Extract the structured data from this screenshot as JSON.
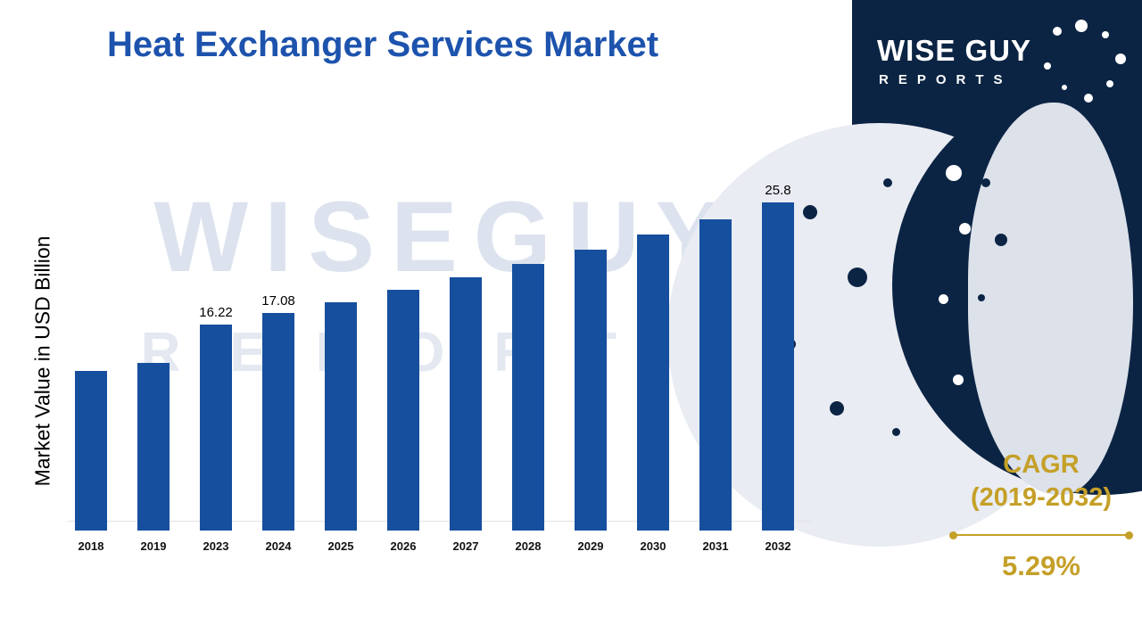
{
  "page": {
    "title": "Heat Exchanger Services Market"
  },
  "logo": {
    "line1": "WISE GUY",
    "line2": "REPORTS"
  },
  "watermark": {
    "line1": "WISEGUY",
    "line2": "REPORTS"
  },
  "cagr": {
    "label": "CAGR",
    "range": "(2019-2032)",
    "value": "5.29%"
  },
  "colors": {
    "bar": "#164f9e",
    "title": "#1d53ad",
    "navy": "#0b2444",
    "gold": "#c5a028",
    "watermark": "#dde3ee"
  },
  "chart_data": {
    "type": "bar",
    "title": "Heat Exchanger Services Market",
    "xlabel": "",
    "ylabel": "Market Value in USD Billion",
    "units": "USD Billion",
    "categories": [
      "2018",
      "2019",
      "2023",
      "2024",
      "2025",
      "2026",
      "2027",
      "2028",
      "2029",
      "2030",
      "2031",
      "2032"
    ],
    "values": [
      12.53,
      13.2,
      16.22,
      17.08,
      17.98,
      18.93,
      19.93,
      20.99,
      22.1,
      23.27,
      24.5,
      25.8
    ],
    "value_labels": [
      "",
      "",
      "16.22",
      "17.08",
      "",
      "",
      "",
      "",
      "",
      "",
      "",
      "25.8"
    ],
    "ylim": [
      0,
      27
    ],
    "grid": false,
    "legend": false,
    "annotations": {
      "cagr_label": "CAGR (2019-2032)",
      "cagr_value": "5.29%"
    }
  }
}
